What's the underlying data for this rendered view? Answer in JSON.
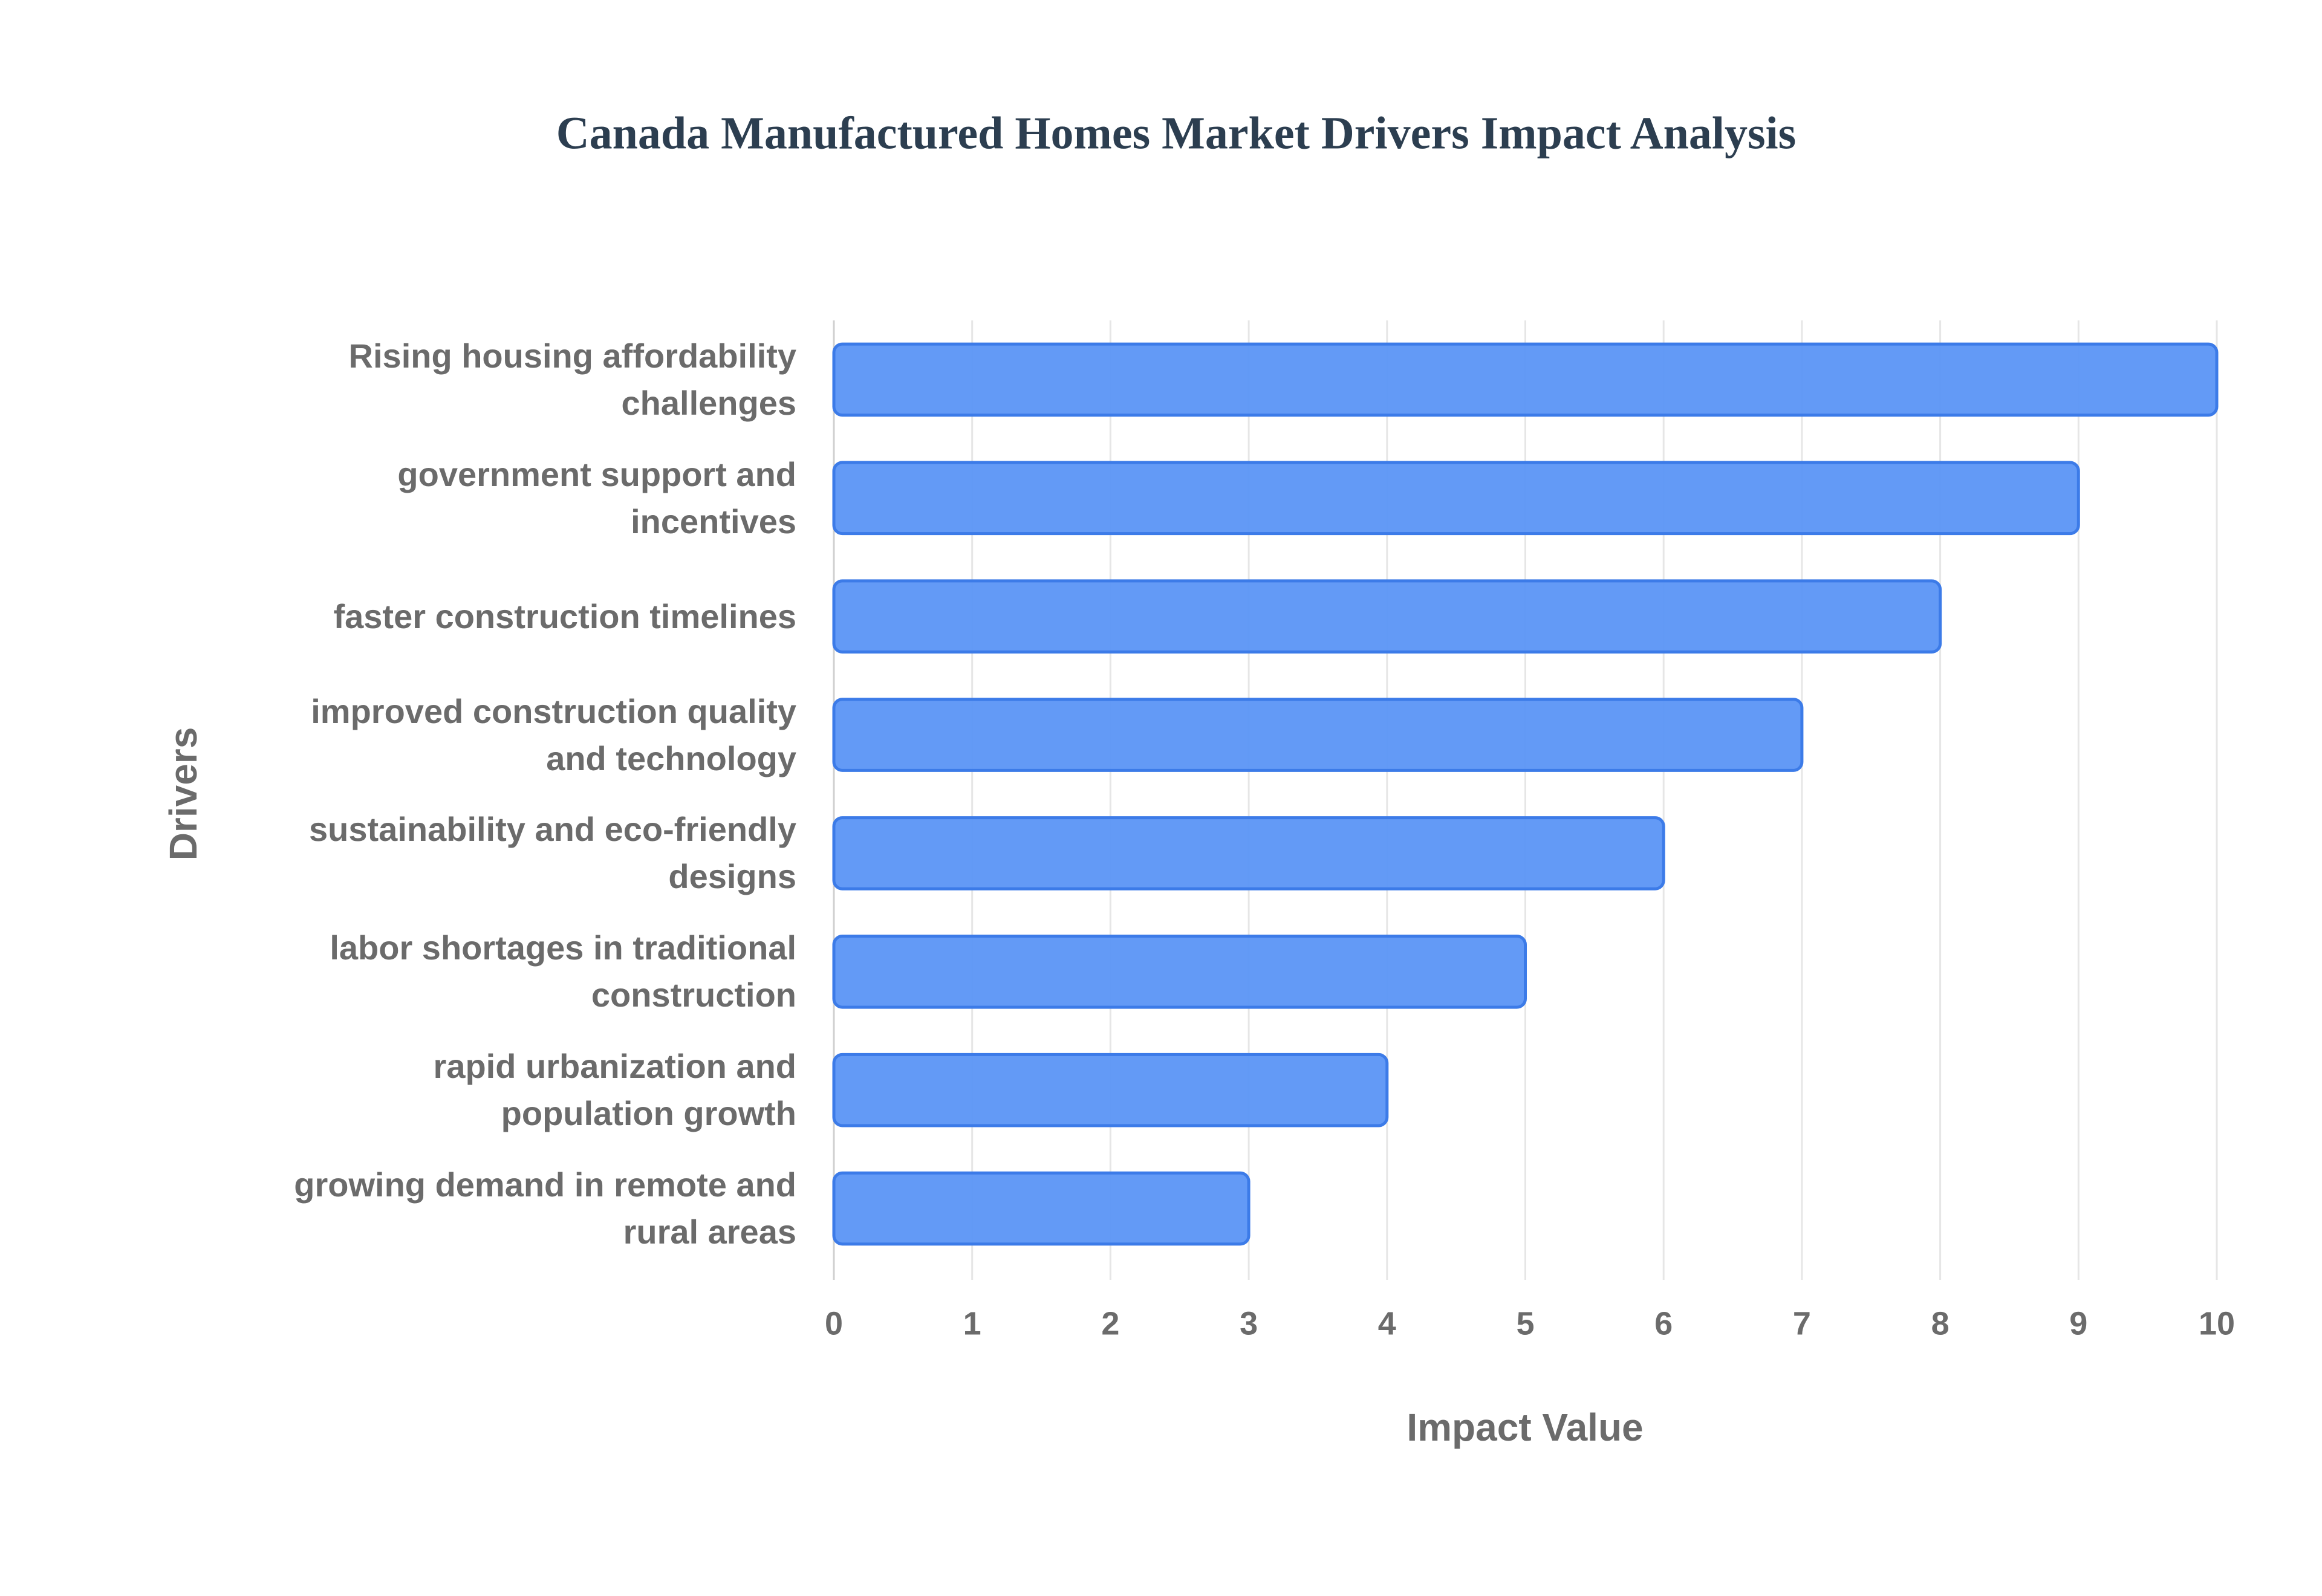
{
  "chart_data": {
    "type": "bar",
    "orientation": "horizontal",
    "title": "Canada Manufactured Homes Market Drivers Impact Analysis",
    "x_label": "Impact Value",
    "y_label": "Drivers",
    "categories": [
      "Rising housing affordability challenges",
      "government support and incentives",
      "faster construction timelines",
      "improved construction quality and technology",
      "sustainability and eco-friendly designs",
      "labor shortages in traditional construction",
      "rapid urbanization and population growth",
      "growing demand in remote and rural areas"
    ],
    "values": [
      10,
      9,
      8,
      7,
      6,
      5,
      4,
      3
    ],
    "color": "#5b95f5",
    "edge_color": "#3c7be8",
    "xlim": [
      0,
      10
    ],
    "xticks": [
      0,
      1,
      2,
      3,
      4,
      5,
      6,
      7,
      8,
      9,
      10
    ],
    "grid": true
  }
}
